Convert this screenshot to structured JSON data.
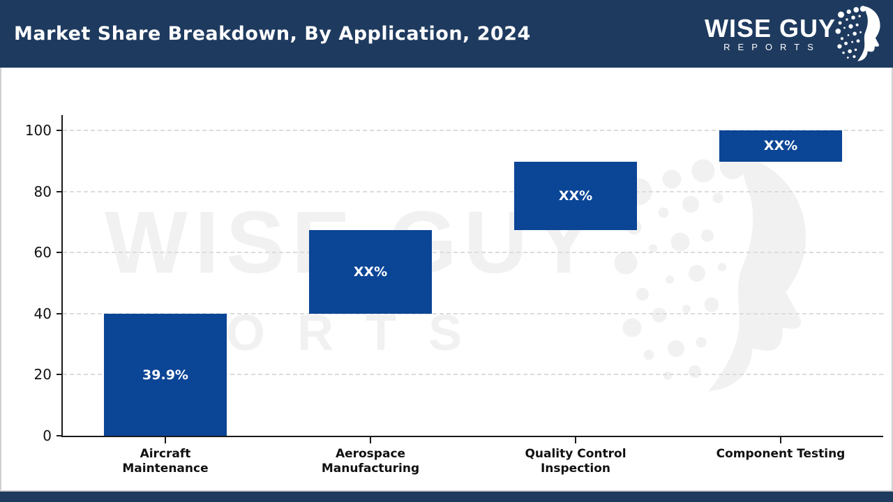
{
  "header": {
    "title": "Market Share Breakdown, By Application, 2024",
    "logo": {
      "line1": "WISE GUY",
      "line2": "REPORTS"
    },
    "bg_color": "#1e3a5f",
    "text_color": "#ffffff"
  },
  "watermark": {
    "line1": "WISE GUY",
    "line2": "PORTS",
    "color": "#f1f1f1"
  },
  "chart_data": {
    "type": "bar",
    "subtype": "waterfall",
    "title": "Market Share Breakdown, By Application, 2024",
    "xlabel": "",
    "ylabel": "",
    "ylim": [
      0,
      105
    ],
    "yticks": [
      0,
      20,
      40,
      60,
      80,
      100
    ],
    "grid": "horizontal-dashed",
    "legend": "none",
    "bar_color": "#0b4596",
    "label_color": "#ffffff",
    "grid_color": "#dcdcdc",
    "categories": [
      {
        "name": "Aircraft Maintenance",
        "lines": [
          "Aircraft",
          "Maintenance"
        ]
      },
      {
        "name": "Aerospace Manufacturing",
        "lines": [
          "Aerospace",
          "Manufacturing"
        ]
      },
      {
        "name": "Quality Control Inspection",
        "lines": [
          "Quality Control",
          "Inspection"
        ]
      },
      {
        "name": "Component Testing",
        "lines": [
          "Component Testing"
        ]
      }
    ],
    "segments": [
      {
        "category": "Aircraft Maintenance",
        "start": 0,
        "end": 39.9,
        "label": "39.9%"
      },
      {
        "category": "Aerospace Manufacturing",
        "start": 39.9,
        "end": 67.3,
        "label": "XX%"
      },
      {
        "category": "Quality Control Inspection",
        "start": 67.3,
        "end": 89.8,
        "label": "XX%"
      },
      {
        "category": "Component Testing",
        "start": 89.8,
        "end": 100.0,
        "label": "XX%"
      }
    ]
  },
  "footer": {
    "bg_color": "#1e3a5f"
  }
}
